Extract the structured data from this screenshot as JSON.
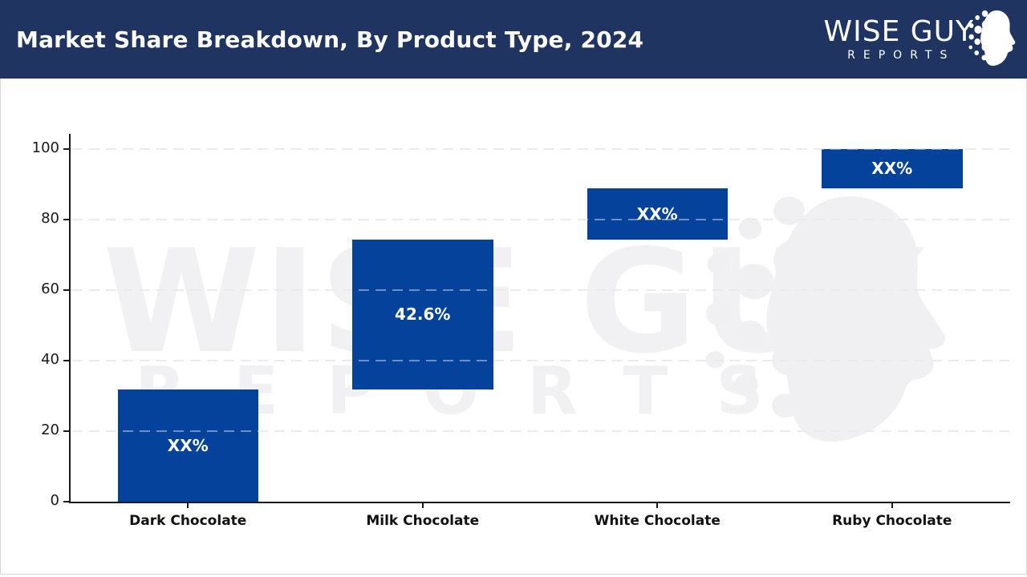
{
  "header": {
    "title": "Market Share Breakdown, By Product Type, 2024",
    "logo": {
      "line1": "WISE GUY",
      "line2": "REPORTS"
    }
  },
  "watermark": {
    "line1": "WISE GUY",
    "line2": "REPORTS"
  },
  "colors": {
    "header_bg": "#203462",
    "bar": "#05429B",
    "bar_label": "#ffffff",
    "gridline": "#dcdcdc",
    "axis": "#1a1a1a",
    "watermark": "#f1f1f3"
  },
  "chart_data": {
    "type": "bar",
    "subtype": "waterfall",
    "title": "Market Share Breakdown, By Product Type, 2024",
    "xlabel": "",
    "ylabel": "",
    "categories": [
      "Dark Chocolate",
      "Milk Chocolate",
      "White Chocolate",
      "Ruby Chocolate"
    ],
    "segments": [
      {
        "category": "Dark Chocolate",
        "start": 0,
        "end": 31.8,
        "label": "XX%",
        "value_shown": false
      },
      {
        "category": "Milk Chocolate",
        "start": 31.8,
        "end": 74.4,
        "label": "42.6%",
        "value_shown": true,
        "value": 42.6
      },
      {
        "category": "White Chocolate",
        "start": 74.4,
        "end": 88.9,
        "label": "XX%",
        "value_shown": false
      },
      {
        "category": "Ruby Chocolate",
        "start": 88.9,
        "end": 100,
        "label": "XX%",
        "value_shown": false
      }
    ],
    "yticks": [
      0,
      20,
      40,
      60,
      80,
      100
    ],
    "ylim": [
      0,
      100
    ],
    "grid": "horizontal dashed",
    "legend": "none",
    "bar_color": "#05429B"
  }
}
